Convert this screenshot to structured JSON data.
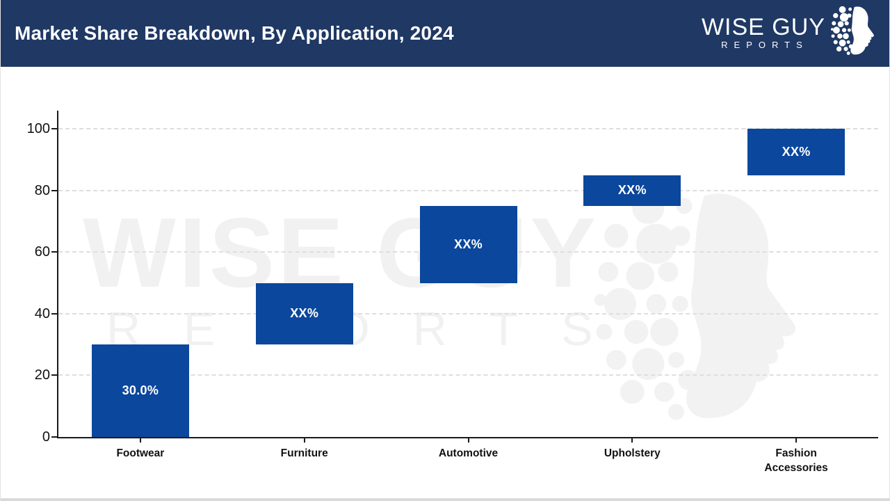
{
  "header": {
    "title": "Market Share Breakdown, By Application, 2024",
    "logo": {
      "wordmark": "WISE GUY",
      "subtext": "REPORTS"
    }
  },
  "watermark": {
    "line1": "WISE GUY",
    "line2": "REPORTS"
  },
  "chart_data": {
    "type": "bar",
    "subtype": "floating-waterfall",
    "title": "Market Share Breakdown, By Application, 2024",
    "xlabel": "",
    "ylabel": "",
    "categories": [
      "Footwear",
      "Furniture",
      "Automotive",
      "Upholstery",
      "Fashion Accessories"
    ],
    "series": [
      {
        "name": "Market Share (%)",
        "values": [
          30,
          20,
          25,
          10,
          15
        ]
      }
    ],
    "segments": [
      {
        "category": "Footwear",
        "start": 0,
        "end": 30,
        "label": "30.0%"
      },
      {
        "category": "Furniture",
        "start": 30,
        "end": 50,
        "label": "XX%"
      },
      {
        "category": "Automotive",
        "start": 50,
        "end": 75,
        "label": "XX%"
      },
      {
        "category": "Upholstery",
        "start": 75,
        "end": 85,
        "label": "XX%"
      },
      {
        "category": "Fashion Accessories",
        "start": 85,
        "end": 100,
        "label": "XX%"
      }
    ],
    "yticks": [
      0,
      20,
      40,
      60,
      80,
      100
    ],
    "ylim": [
      0,
      105
    ],
    "grid": "horizontal-dashed",
    "legend": "none",
    "colors": {
      "bar": "#0b479c",
      "bar_label": "#ffffff",
      "axis": "#1a1a1a",
      "gridline": "#dedede",
      "header_bg": "#1f3864",
      "watermark": "#f1f1f1"
    }
  }
}
